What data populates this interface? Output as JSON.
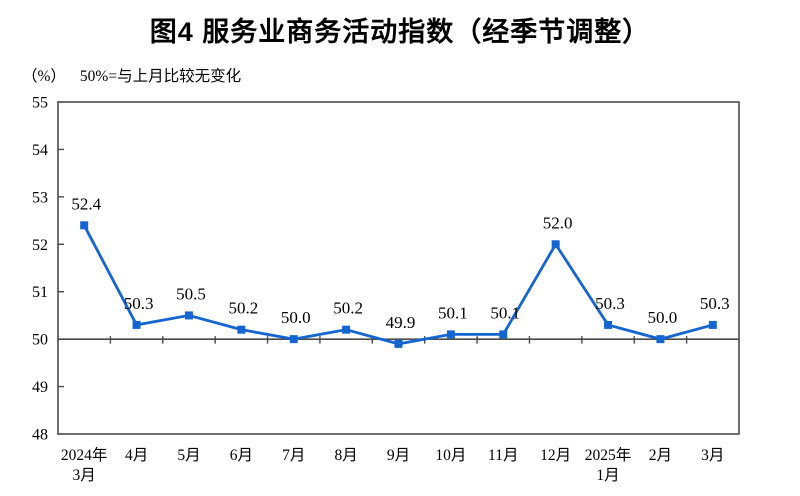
{
  "title": "图4  服务业商务活动指数（经季节调整）",
  "subtitle": {
    "unit": "（%）",
    "note": "50%=与上月比较无变化"
  },
  "chart_data": {
    "type": "line",
    "series": [
      {
        "name": "服务业商务活动指数",
        "values": [
          52.4,
          50.3,
          50.5,
          50.2,
          50.0,
          50.2,
          49.9,
          50.1,
          50.1,
          52.0,
          50.3,
          50.0,
          50.3
        ]
      }
    ],
    "data_labels": [
      "52.4",
      "50.3",
      "50.5",
      "50.2",
      "50.0",
      "50.2",
      "49.9",
      "50.1",
      "50.1",
      "52.0",
      "50.3",
      "50.0",
      "50.3"
    ],
    "categories": [
      [
        "2024年",
        "3月"
      ],
      [
        "4月"
      ],
      [
        "5月"
      ],
      [
        "6月"
      ],
      [
        "7月"
      ],
      [
        "8月"
      ],
      [
        "9月"
      ],
      [
        "10月"
      ],
      [
        "11月"
      ],
      [
        "12月"
      ],
      [
        "2025年",
        "1月"
      ],
      [
        "2月"
      ],
      [
        "3月"
      ]
    ],
    "ylim": [
      48,
      55
    ],
    "y_ticks": [
      55,
      54,
      53,
      52,
      51,
      50,
      49,
      48
    ],
    "reference_line": 50,
    "grid": false,
    "legend_position": "none",
    "line_color": "#1565d0",
    "marker_color": "#1565d0",
    "axis_color": "#4a4a4a",
    "text_color": "#000000"
  }
}
